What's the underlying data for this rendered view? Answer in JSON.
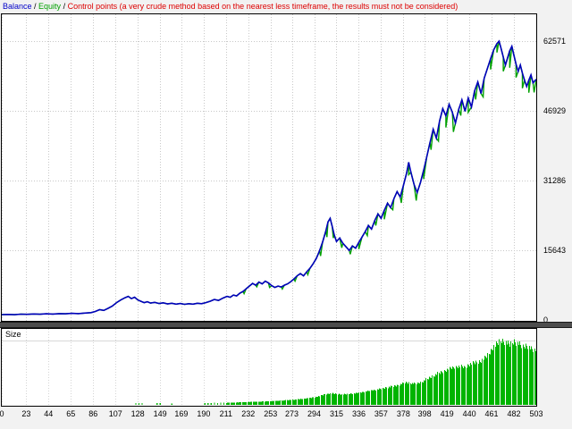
{
  "legend": {
    "segments": [
      {
        "label": "Balance",
        "color": "#0000c8"
      },
      {
        "label": " / ",
        "color": "#000000"
      },
      {
        "label": "Equity",
        "color": "#00a000"
      },
      {
        "label": " / ",
        "color": "#000000"
      },
      {
        "label": "Control points (a very crude method based on the nearest less timeframe, the results must not be considered)",
        "color": "#dd0000"
      }
    ]
  },
  "size_panel": {
    "label": "Size",
    "bar_color": "#00b400"
  },
  "chart_data": {
    "type": "line",
    "title": "",
    "xlabel": "",
    "ylabel": "",
    "xlim": [
      0,
      503
    ],
    "ylim": [
      0,
      68000
    ],
    "grid": true,
    "x_ticks": [
      0,
      23,
      44,
      65,
      86,
      107,
      128,
      149,
      169,
      190,
      211,
      232,
      253,
      273,
      294,
      315,
      336,
      357,
      378,
      398,
      419,
      440,
      461,
      482,
      503
    ],
    "y_ticks": [
      0,
      15643,
      31286,
      46929,
      62571
    ],
    "series": [
      {
        "name": "Balance",
        "color": "#0000bb",
        "points": [
          [
            0,
            1200
          ],
          [
            6,
            1250
          ],
          [
            12,
            1180
          ],
          [
            18,
            1300
          ],
          [
            24,
            1260
          ],
          [
            30,
            1340
          ],
          [
            36,
            1280
          ],
          [
            42,
            1380
          ],
          [
            48,
            1320
          ],
          [
            54,
            1420
          ],
          [
            60,
            1380
          ],
          [
            66,
            1480
          ],
          [
            72,
            1430
          ],
          [
            78,
            1550
          ],
          [
            84,
            1650
          ],
          [
            88,
            1900
          ],
          [
            92,
            2300
          ],
          [
            96,
            2150
          ],
          [
            100,
            2600
          ],
          [
            104,
            3100
          ],
          [
            108,
            3900
          ],
          [
            112,
            4500
          ],
          [
            116,
            5000
          ],
          [
            119,
            5300
          ],
          [
            122,
            4800
          ],
          [
            125,
            5100
          ],
          [
            128,
            4500
          ],
          [
            131,
            4200
          ],
          [
            134,
            3900
          ],
          [
            137,
            4100
          ],
          [
            140,
            3800
          ],
          [
            144,
            3950
          ],
          [
            148,
            3700
          ],
          [
            152,
            3850
          ],
          [
            156,
            3600
          ],
          [
            160,
            3750
          ],
          [
            164,
            3550
          ],
          [
            168,
            3700
          ],
          [
            172,
            3500
          ],
          [
            176,
            3650
          ],
          [
            180,
            3550
          ],
          [
            184,
            3750
          ],
          [
            188,
            3650
          ],
          [
            192,
            3900
          ],
          [
            196,
            4200
          ],
          [
            200,
            4600
          ],
          [
            204,
            4400
          ],
          [
            208,
            4900
          ],
          [
            212,
            5300
          ],
          [
            215,
            5100
          ],
          [
            218,
            5600
          ],
          [
            221,
            5400
          ],
          [
            224,
            6000
          ],
          [
            227,
            6400
          ],
          [
            230,
            7000
          ],
          [
            233,
            7600
          ],
          [
            236,
            8200
          ],
          [
            239,
            7800
          ],
          [
            242,
            8500
          ],
          [
            245,
            8100
          ],
          [
            248,
            8700
          ],
          [
            251,
            8300
          ],
          [
            254,
            7700
          ],
          [
            257,
            7300
          ],
          [
            260,
            7600
          ],
          [
            263,
            7400
          ],
          [
            266,
            7800
          ],
          [
            269,
            8100
          ],
          [
            272,
            8600
          ],
          [
            275,
            9200
          ],
          [
            278,
            9900
          ],
          [
            281,
            10400
          ],
          [
            284,
            9900
          ],
          [
            287,
            10800
          ],
          [
            290,
            11600
          ],
          [
            293,
            12600
          ],
          [
            296,
            13800
          ],
          [
            299,
            15500
          ],
          [
            302,
            17500
          ],
          [
            305,
            20000
          ],
          [
            307,
            22000
          ],
          [
            309,
            22800
          ],
          [
            311,
            21000
          ],
          [
            313,
            19000
          ],
          [
            315,
            17600
          ],
          [
            318,
            18400
          ],
          [
            321,
            17200
          ],
          [
            324,
            16400
          ],
          [
            327,
            15600
          ],
          [
            330,
            16600
          ],
          [
            333,
            16100
          ],
          [
            336,
            17400
          ],
          [
            339,
            18600
          ],
          [
            342,
            19800
          ],
          [
            345,
            21200
          ],
          [
            348,
            20400
          ],
          [
            351,
            22300
          ],
          [
            354,
            23800
          ],
          [
            357,
            22800
          ],
          [
            360,
            24600
          ],
          [
            363,
            26200
          ],
          [
            366,
            25200
          ],
          [
            369,
            27200
          ],
          [
            372,
            28800
          ],
          [
            375,
            27600
          ],
          [
            378,
            30200
          ],
          [
            381,
            33000
          ],
          [
            383,
            35400
          ],
          [
            385,
            33200
          ],
          [
            388,
            30400
          ],
          [
            391,
            28600
          ],
          [
            394,
            30800
          ],
          [
            397,
            33600
          ],
          [
            400,
            36600
          ],
          [
            403,
            39800
          ],
          [
            406,
            42800
          ],
          [
            409,
            40800
          ],
          [
            412,
            44600
          ],
          [
            415,
            47400
          ],
          [
            418,
            45800
          ],
          [
            421,
            48400
          ],
          [
            424,
            46600
          ],
          [
            427,
            44200
          ],
          [
            430,
            47200
          ],
          [
            433,
            49400
          ],
          [
            436,
            46800
          ],
          [
            439,
            49800
          ],
          [
            442,
            47800
          ],
          [
            445,
            51400
          ],
          [
            448,
            53400
          ],
          [
            451,
            50800
          ],
          [
            454,
            54200
          ],
          [
            457,
            56400
          ],
          [
            460,
            58600
          ],
          [
            463,
            60600
          ],
          [
            466,
            62000
          ],
          [
            468,
            62571
          ],
          [
            470,
            60800
          ],
          [
            472,
            59000
          ],
          [
            474,
            57200
          ],
          [
            476,
            58800
          ],
          [
            478,
            60400
          ],
          [
            480,
            61400
          ],
          [
            482,
            59400
          ],
          [
            484,
            57400
          ],
          [
            486,
            55800
          ],
          [
            488,
            57200
          ],
          [
            490,
            55400
          ],
          [
            492,
            53800
          ],
          [
            494,
            52400
          ],
          [
            496,
            53800
          ],
          [
            498,
            55000
          ],
          [
            500,
            53200
          ],
          [
            503,
            54000
          ]
        ]
      },
      {
        "name": "Equity",
        "color": "#00a000",
        "based_on": "Balance",
        "deviations": [
          [
            228,
            -700
          ],
          [
            240,
            -600
          ],
          [
            252,
            -800
          ],
          [
            264,
            -600
          ],
          [
            276,
            -700
          ],
          [
            288,
            -900
          ],
          [
            300,
            -1800
          ],
          [
            306,
            -2400
          ],
          [
            312,
            -1600
          ],
          [
            320,
            -1400
          ],
          [
            328,
            -1200
          ],
          [
            336,
            -1500
          ],
          [
            344,
            -1800
          ],
          [
            352,
            -1600
          ],
          [
            360,
            -2000
          ],
          [
            368,
            -1800
          ],
          [
            376,
            -2200
          ],
          [
            383,
            -2800
          ],
          [
            390,
            -2400
          ],
          [
            397,
            -2000
          ],
          [
            404,
            -2600
          ],
          [
            411,
            -3200
          ],
          [
            418,
            -2600
          ],
          [
            425,
            -3600
          ],
          [
            432,
            -2800
          ],
          [
            439,
            -3200
          ],
          [
            446,
            -2600
          ],
          [
            453,
            -3000
          ],
          [
            460,
            -2400
          ],
          [
            466,
            -2000
          ],
          [
            472,
            -3200
          ],
          [
            478,
            -3800
          ],
          [
            484,
            -3000
          ],
          [
            490,
            -3400
          ],
          [
            496,
            -2800
          ],
          [
            501,
            -2400
          ]
        ]
      }
    ],
    "size_series": {
      "name": "Size",
      "continuous_from": 211,
      "sparse_bars": [
        [
          126,
          2.5
        ],
        [
          129,
          2.8
        ],
        [
          132,
          2.2
        ],
        [
          146,
          2.5
        ],
        [
          149,
          2.2
        ],
        [
          160,
          2.0
        ],
        [
          191,
          2.6
        ],
        [
          194,
          2.8
        ],
        [
          197,
          2.6
        ],
        [
          200,
          3.0
        ],
        [
          203,
          2.8
        ],
        [
          206,
          3.2
        ],
        [
          209,
          3.0
        ]
      ],
      "keypoints": [
        [
          211,
          3
        ],
        [
          218,
          3.4
        ],
        [
          225,
          3.8
        ],
        [
          232,
          4.2
        ],
        [
          239,
          4.6
        ],
        [
          246,
          5
        ],
        [
          253,
          5.5
        ],
        [
          260,
          6
        ],
        [
          267,
          6.8
        ],
        [
          274,
          7.6
        ],
        [
          281,
          8.6
        ],
        [
          288,
          9.8
        ],
        [
          295,
          11.5
        ],
        [
          300,
          13.5
        ],
        [
          305,
          16
        ],
        [
          310,
          17
        ],
        [
          315,
          16
        ],
        [
          320,
          15.5
        ],
        [
          325,
          16
        ],
        [
          330,
          16.5
        ],
        [
          335,
          17.5
        ],
        [
          340,
          19
        ],
        [
          345,
          20.5
        ],
        [
          350,
          22
        ],
        [
          355,
          23
        ],
        [
          360,
          25
        ],
        [
          365,
          26.5
        ],
        [
          370,
          28
        ],
        [
          375,
          30
        ],
        [
          380,
          33
        ],
        [
          385,
          32
        ],
        [
          390,
          31
        ],
        [
          395,
          34
        ],
        [
          400,
          38
        ],
        [
          405,
          42
        ],
        [
          410,
          46
        ],
        [
          415,
          49
        ],
        [
          420,
          53
        ],
        [
          425,
          55
        ],
        [
          430,
          57
        ],
        [
          435,
          55
        ],
        [
          440,
          60
        ],
        [
          445,
          62
        ],
        [
          450,
          64
        ],
        [
          455,
          70
        ],
        [
          458,
          75
        ],
        [
          462,
          85
        ],
        [
          466,
          90
        ],
        [
          470,
          95
        ],
        [
          474,
          92
        ],
        [
          478,
          88
        ],
        [
          482,
          94
        ],
        [
          486,
          90
        ],
        [
          490,
          85
        ],
        [
          494,
          88
        ],
        [
          498,
          82
        ],
        [
          503,
          78
        ]
      ]
    }
  }
}
